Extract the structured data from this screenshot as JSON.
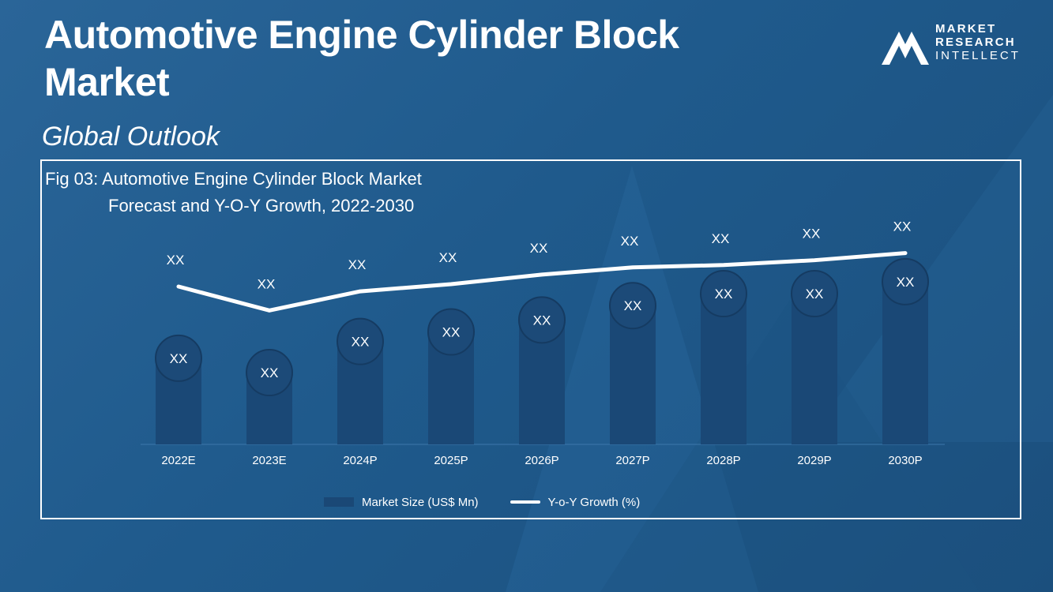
{
  "header": {
    "title_line1": "Automotive Engine Cylinder Block",
    "title_line2": "Market",
    "subtitle": "Global Outlook"
  },
  "logo": {
    "line1": "MARKET",
    "line2": "RESEARCH",
    "line3": "INTELLECT"
  },
  "figure": {
    "title_line1": "Fig 03: Automotive Engine Cylinder Block Market",
    "title_line2": "Forecast and Y-O-Y Growth, 2022-2030"
  },
  "colors": {
    "background": "#22609a",
    "bar": "#1a4876",
    "bubble": "#1c4a78",
    "line": "#ffffff"
  },
  "chart_data": {
    "type": "bar",
    "title": "Fig 03: Automotive Engine Cylinder Block Market Forecast and Y-O-Y Growth, 2022-2030",
    "categories": [
      "2022E",
      "2023E",
      "2024P",
      "2025P",
      "2026P",
      "2027P",
      "2028P",
      "2029P",
      "2030P"
    ],
    "series": [
      {
        "name": "Market Size (US$ Mn)",
        "type": "bar",
        "values": [
          38,
          32,
          45,
          49,
          54,
          60,
          65,
          65,
          70
        ],
        "labels": [
          "XX",
          "XX",
          "XX",
          "XX",
          "XX",
          "XX",
          "XX",
          "XX",
          "XX"
        ]
      },
      {
        "name": "Y-o-Y Growth (%)",
        "type": "line",
        "values": [
          66,
          56,
          64,
          67,
          71,
          74,
          75,
          77,
          80
        ],
        "labels": [
          "XX",
          "XX",
          "XX",
          "XX",
          "XX",
          "XX",
          "XX",
          "XX",
          "XX"
        ]
      }
    ],
    "ylim": [
      0,
      100
    ],
    "grid": false,
    "legend": "bottom-center",
    "xlabel": "",
    "ylabel": ""
  }
}
